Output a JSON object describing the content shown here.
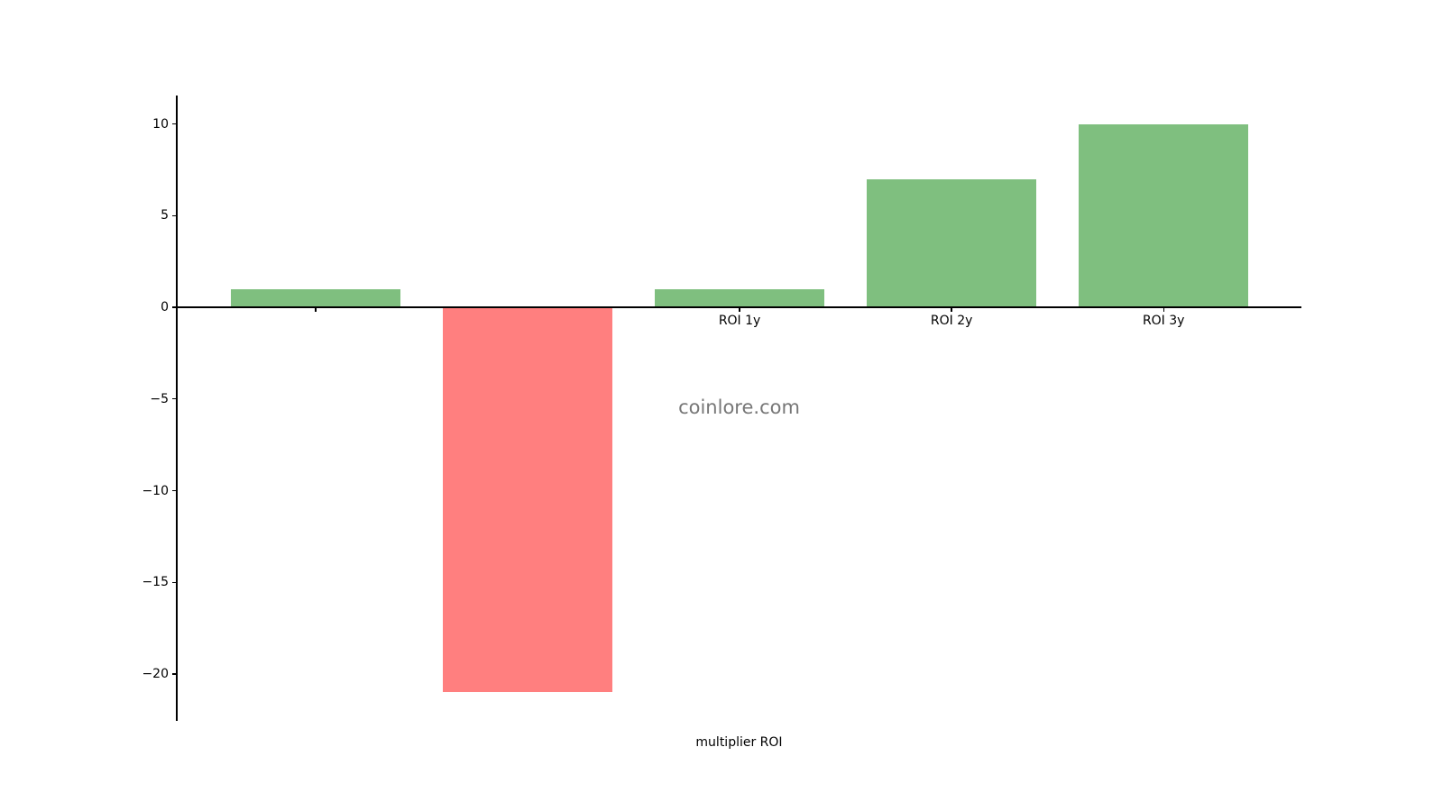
{
  "watermark": "coinlore.com",
  "chart_data": {
    "type": "bar",
    "title": "",
    "xlabel": "multiplier ROI",
    "ylabel": "",
    "categories": [
      "",
      "",
      "ROI 1y",
      "ROI 2y",
      "ROI 3y"
    ],
    "values": [
      1,
      -21,
      1,
      7,
      10
    ],
    "yticks": [
      {
        "value": 10,
        "label": "10"
      },
      {
        "value": 5,
        "label": "5"
      },
      {
        "value": 0,
        "label": "0"
      },
      {
        "value": -5,
        "label": "−5"
      },
      {
        "value": -10,
        "label": "−10"
      },
      {
        "value": -15,
        "label": "−15"
      },
      {
        "value": -20,
        "label": "−20"
      }
    ],
    "ylim": [
      -22.55,
      11.55
    ],
    "xlim": [
      -0.655,
      4.65
    ],
    "bar_width_fraction": 0.8,
    "grid": false,
    "legend": "none",
    "colors": {
      "positive": "#7fbf7f",
      "negative": "#ff7f7f",
      "axis": "#000000",
      "tick_label": "#000000",
      "watermark": "#777777",
      "background": "#ffffff"
    }
  }
}
